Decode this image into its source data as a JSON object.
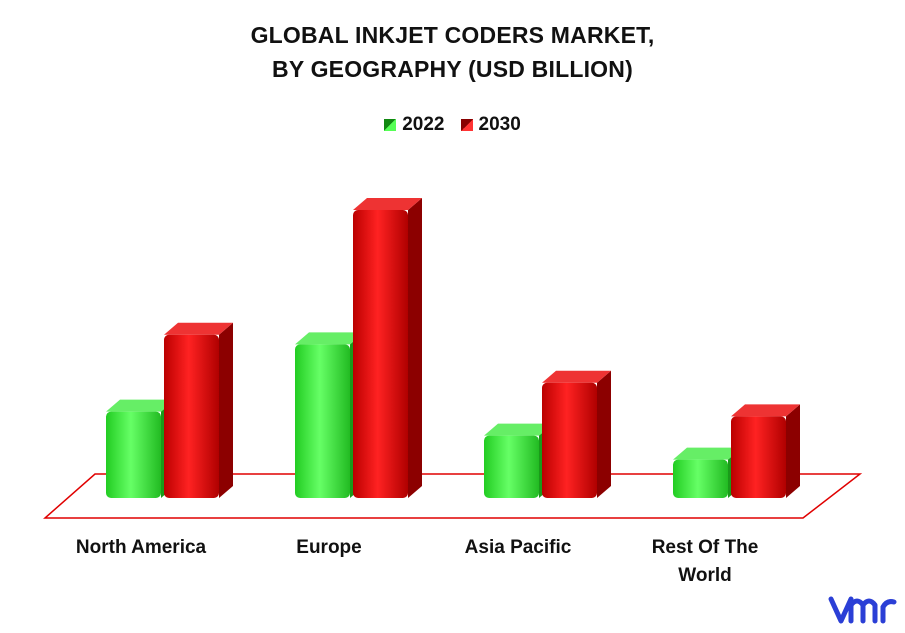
{
  "chart_data": {
    "type": "bar",
    "title_lines": [
      "GLOBAL INKJET CODERS MARKET,",
      "BY GEOGRAPHY (USD BILLION)"
    ],
    "categories": [
      "North America",
      "Europe",
      "Asia Pacific",
      "Rest Of The World"
    ],
    "series": [
      {
        "name": "2022",
        "color": "#33dd33",
        "values": [
          0.9,
          1.6,
          0.65,
          0.4
        ]
      },
      {
        "name": "2030",
        "color": "#dd1111",
        "values": [
          1.7,
          3.0,
          1.2,
          0.85
        ]
      }
    ],
    "ylim": [
      0,
      3.0
    ],
    "legend_position": "top-center",
    "grid": false
  },
  "colors": {
    "floor_outline": "#e00000",
    "logo": "#2b3fd6"
  },
  "logo_icon": "vmr-logo-icon"
}
